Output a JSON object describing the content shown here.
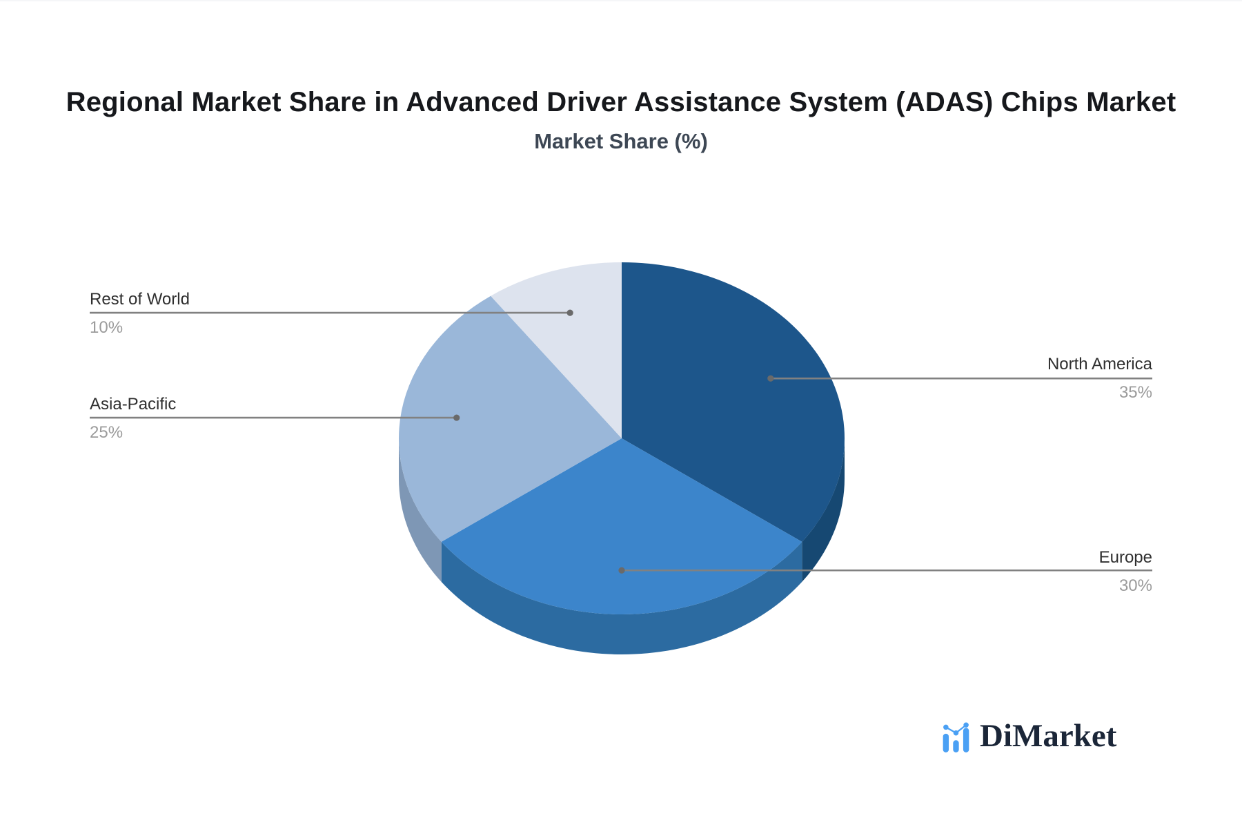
{
  "header": {
    "title": "Regional Market Share in Advanced Driver Assistance System (ADAS) Chips Market",
    "subtitle": "Market Share (%)"
  },
  "chart_data": {
    "type": "pie",
    "style": "3d",
    "start_angle_deg": 0,
    "direction": "clockwise",
    "unit": "%",
    "title": "Regional Market Share in Advanced Driver Assistance System (ADAS) Chips Market",
    "subtitle": "Market Share (%)",
    "slices": [
      {
        "label": "North America",
        "value": 35,
        "pct_label": "35%",
        "color": "#1d568b",
        "side_color": "#164872",
        "callout_side": "right"
      },
      {
        "label": "Europe",
        "value": 30,
        "pct_label": "30%",
        "color": "#3c85cb",
        "side_color": "#2c6ba1",
        "callout_side": "right"
      },
      {
        "label": "Asia-Pacific",
        "value": 25,
        "pct_label": "25%",
        "color": "#9ab7d9",
        "side_color": "#7e97b5",
        "callout_side": "left"
      },
      {
        "label": "Rest of World",
        "value": 10,
        "pct_label": "10%",
        "color": "#dde3ee",
        "side_color": "#b9c3d2",
        "callout_side": "left"
      }
    ],
    "callout": {
      "line_color": "#818181",
      "dot_color": "#6a6a6a",
      "label_color": "#2f2f2f",
      "pct_color": "#9b9b9b"
    }
  },
  "logo": {
    "brand": "DiMarket",
    "icon": "bar-chart-trend-icon",
    "icon_color": "#4aa0f4",
    "text_color": "#1b2638"
  }
}
